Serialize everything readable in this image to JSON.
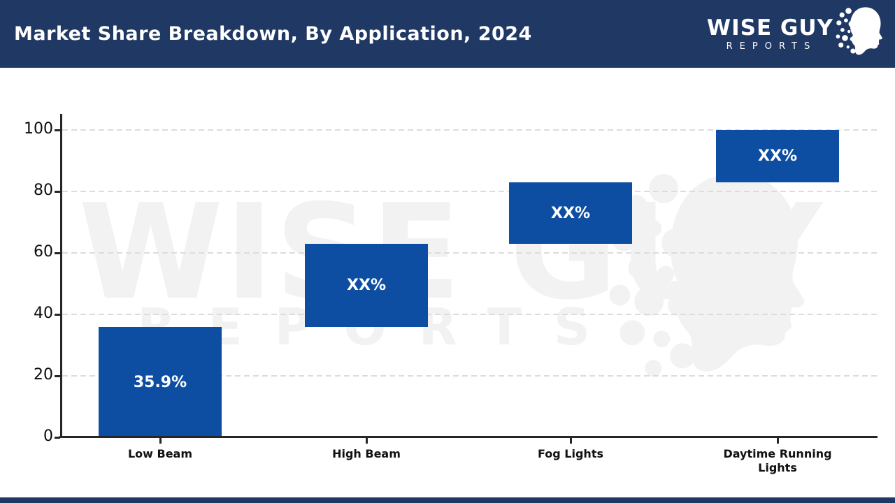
{
  "header": {
    "title": "Market Share Breakdown, By Application, 2024",
    "logo": {
      "word": "WISE GUY",
      "sub": "REPORTS"
    }
  },
  "watermark": {
    "word": "WISE GUY",
    "sub": "REPORTS"
  },
  "chart_data": {
    "type": "bar",
    "variant": "waterfall",
    "title": "Market Share Breakdown, By Application, 2024",
    "categories": [
      "Low Beam",
      "High Beam",
      "Fog Lights",
      "Daytime Running Lights"
    ],
    "segments": [
      {
        "category": "Low Beam",
        "start": 0,
        "end": 35.9,
        "label": "35.9%"
      },
      {
        "category": "High Beam",
        "start": 35.9,
        "end": 63,
        "label": "XX%"
      },
      {
        "category": "Fog Lights",
        "start": 63,
        "end": 83,
        "label": "XX%"
      },
      {
        "category": "Daytime Running Lights",
        "start": 83,
        "end": 100,
        "label": "XX%"
      }
    ],
    "ylim": [
      0,
      100
    ],
    "yticks": [
      0,
      20,
      40,
      60,
      80,
      100
    ],
    "xlabel": "",
    "ylabel": "",
    "grid": "horizontal-dashed",
    "legend": "none",
    "bar_color": "#0d4da2",
    "bar_label_color": "#ffffff"
  },
  "colors": {
    "header_bg": "#1f3864",
    "footer_bg": "#1f3864",
    "bar": "#0d4da2",
    "axis": "#262626",
    "gridline": "#dcdcdc",
    "watermark": "#f2f2f2",
    "title_text": "#ffffff"
  }
}
